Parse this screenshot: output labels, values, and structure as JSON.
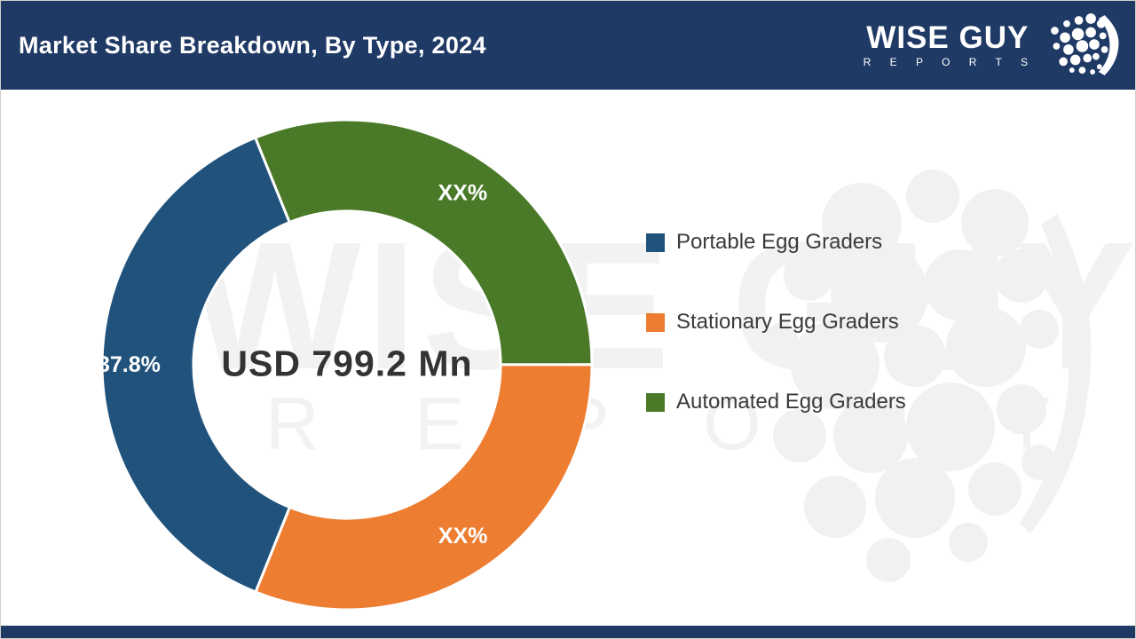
{
  "header": {
    "title": "Market Share Breakdown, By Type, 2024",
    "logo": {
      "line1": "WISE GUY",
      "line2": "R E P O R T S"
    }
  },
  "chart_data": {
    "type": "donut",
    "title": "Market Share Breakdown, By Type, 2024",
    "center_label": "USD 799.2 Mn",
    "start_angle_deg": -22,
    "inner_radius_frac": 0.627,
    "legend_position": "right",
    "slices": [
      {
        "name": "Automated Egg Graders",
        "value_pct": 31.1,
        "display_label": "XX%",
        "color": "#4A7A28",
        "label_r_frac": 0.845
      },
      {
        "name": "Stationary Egg Graders",
        "value_pct": 31.1,
        "display_label": "XX%",
        "color": "#ED7D31",
        "label_r_frac": 0.845
      },
      {
        "name": "Portable Egg Graders",
        "value_pct": 37.8,
        "display_label": "37.8%",
        "color": "#20527C",
        "label_r_frac": 0.89
      }
    ]
  },
  "legend": {
    "items": [
      {
        "label": "Portable Egg Graders",
        "color": "#20527C"
      },
      {
        "label": "Stationary Egg Graders",
        "color": "#ED7D31"
      },
      {
        "label": "Automated Egg Graders",
        "color": "#4A7A28"
      }
    ]
  },
  "watermark": {
    "line1": "WISE GUY",
    "line2": "R E P O R T S"
  },
  "colors": {
    "header_bg": "#203A66",
    "footer_bg": "#203A66",
    "title_text": "#FFFFFF",
    "center_text": "#333333",
    "legend_text": "#3A3A3A",
    "slice_separator": "#FFFFFF",
    "watermark": "#F2F2F2"
  }
}
